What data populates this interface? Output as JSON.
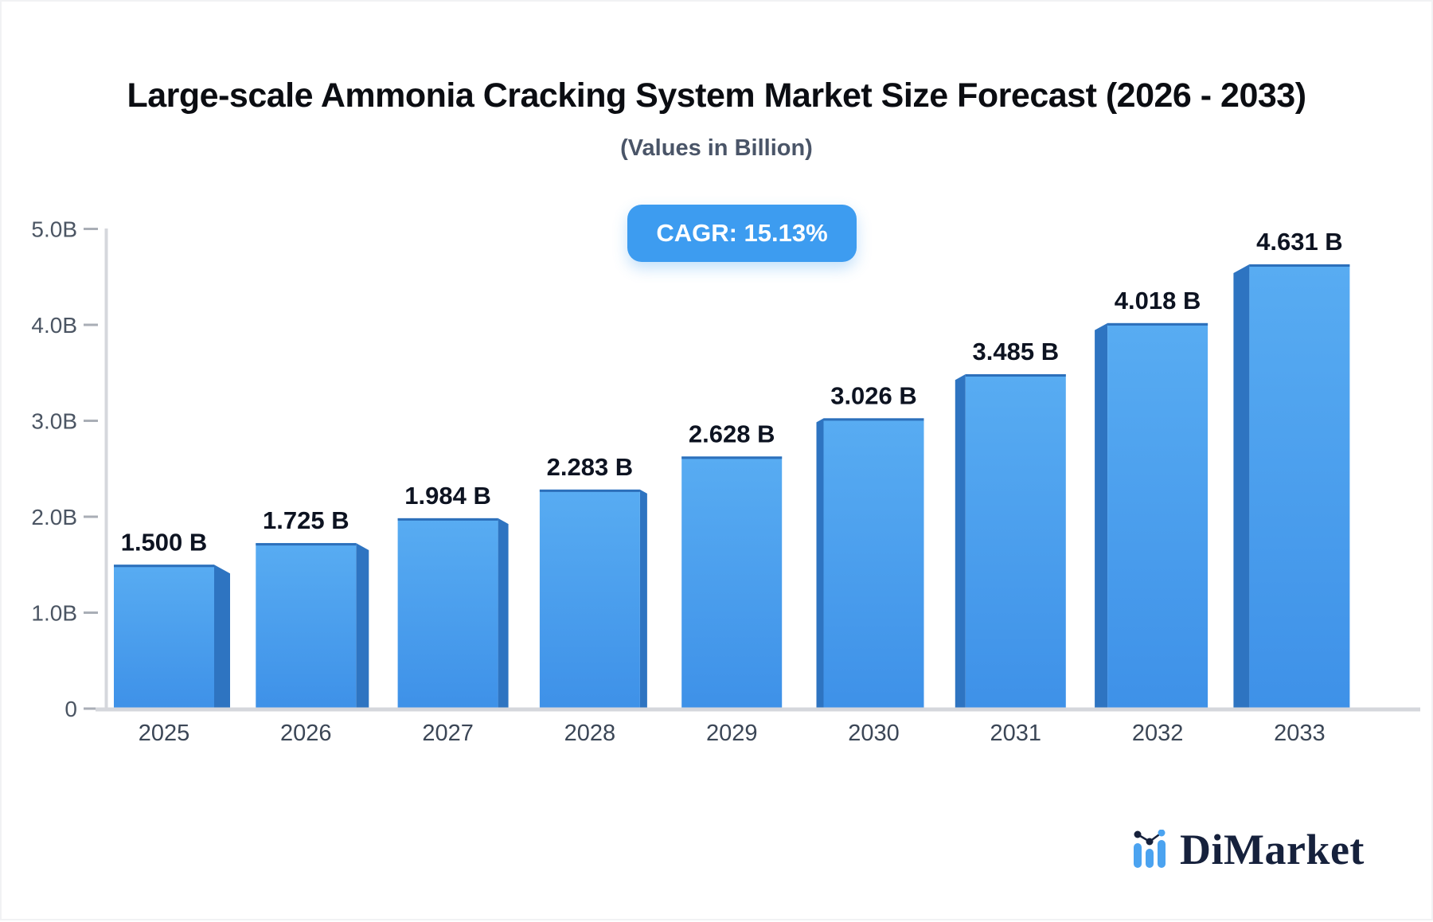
{
  "header": {
    "title": "Large-scale Ammonia Cracking System Market Size Forecast (2026 - 2033)",
    "subtitle": "(Values in Billion)",
    "badge": "CAGR: 15.13%"
  },
  "chart_data": {
    "type": "bar",
    "title": "Large-scale Ammonia Cracking System Market Size Forecast (2026 - 2033)",
    "subtitle": "(Values in Billion)",
    "annotation": "CAGR: 15.13%",
    "categories": [
      "2025",
      "2026",
      "2027",
      "2028",
      "2029",
      "2030",
      "2031",
      "2032",
      "2033"
    ],
    "values": [
      1.5,
      1.725,
      1.984,
      2.283,
      2.628,
      3.026,
      3.485,
      4.018,
      4.631
    ],
    "value_labels": [
      "1.500 B",
      "1.725 B",
      "1.984 B",
      "2.283 B",
      "2.628 B",
      "3.026 B",
      "3.485 B",
      "4.018 B",
      "4.631 B"
    ],
    "xlabel": "",
    "ylabel": "",
    "ylim": [
      0,
      5
    ],
    "ytick_values": [
      0,
      1,
      2,
      3,
      4,
      5
    ],
    "ytick_labels": [
      "0",
      "1.0B",
      "2.0B",
      "3.0B",
      "4.0B",
      "5.0B"
    ],
    "grid": false,
    "legend": false,
    "style": "3d-extruded-bars"
  },
  "colors": {
    "bar_face_top": "#58acf2",
    "bar_face_bottom": "#3e91e8",
    "bar_side": "#2e74c1",
    "bar_top_edge": "#2c6fba",
    "axis_line": "#d5d7dc",
    "tick_mark": "#a9aeb6",
    "ytick_text": "#4b5563",
    "xtick_text": "#3b4656",
    "value_text": "#0d1321",
    "badge_bg": "#3d9cf0",
    "badge_text": "#ffffff",
    "logo_navy": "#16213c",
    "logo_blue": "#4ba3f0"
  },
  "logo": {
    "brand": "DiMarket",
    "icon": "mini-bar-chart-icon"
  }
}
